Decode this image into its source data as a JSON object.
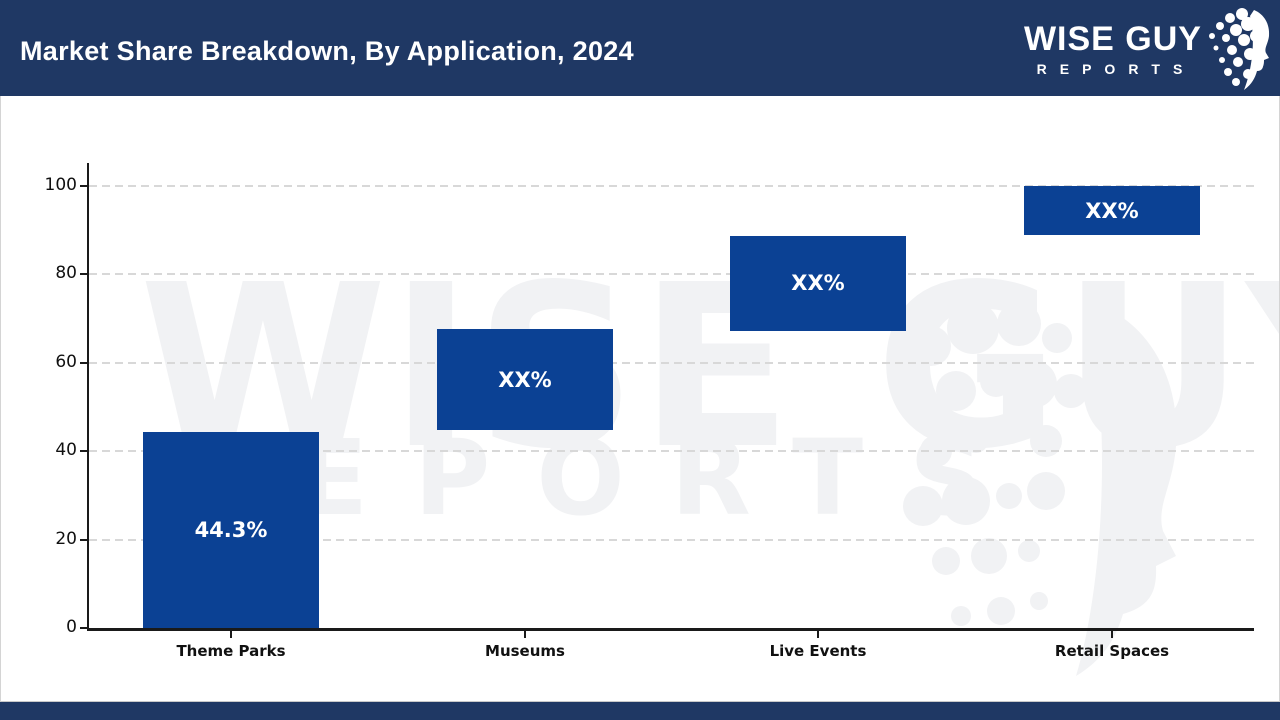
{
  "header": {
    "title": "Market Share Breakdown, By Application, 2024",
    "bg_color": "#1f3864",
    "logo": {
      "line1": "WISE GUY",
      "line2": "REPORTS"
    }
  },
  "watermark": {
    "line1": "WISE GUY",
    "line2": "REPORTS"
  },
  "footer": {
    "bg_color": "#1f3864"
  },
  "chart_data": {
    "type": "bar",
    "subtype": "waterfall",
    "title": "Market Share Breakdown, By Application, 2024",
    "xlabel": "",
    "ylabel": "",
    "categories": [
      "Theme Parks",
      "Museums",
      "Live Events",
      "Retail Spaces"
    ],
    "segments": [
      {
        "category": "Theme Parks",
        "start": 0,
        "end": 44.3,
        "label": "44.3%"
      },
      {
        "category": "Museums",
        "start": 44.7,
        "end": 67.6,
        "label": "XX%"
      },
      {
        "category": "Live Events",
        "start": 67.3,
        "end": 88.7,
        "label": "XX%"
      },
      {
        "category": "Retail Spaces",
        "start": 88.9,
        "end": 100,
        "label": "XX%"
      }
    ],
    "ylim": [
      0,
      100
    ],
    "yticks": [
      0,
      20,
      40,
      60,
      80,
      100
    ],
    "grid": "horizontal-dashed",
    "legend": "none",
    "bar_color": "#0b4194",
    "bar_label_color": "#ffffff",
    "grid_color": "#d8d8d8",
    "axis_color": "#1a1a1a"
  }
}
